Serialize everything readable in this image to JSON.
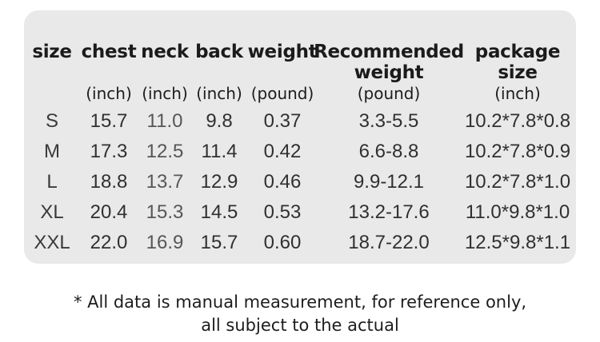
{
  "chart_data": {
    "type": "table",
    "title": "",
    "columns": [
      {
        "label": "size",
        "label2": "",
        "unit": ""
      },
      {
        "label": "chest",
        "label2": "",
        "unit": "(inch)"
      },
      {
        "label": "neck",
        "label2": "",
        "unit": "(inch)"
      },
      {
        "label": "back",
        "label2": "",
        "unit": "(inch)"
      },
      {
        "label": "weight",
        "label2": "",
        "unit": "(pound)"
      },
      {
        "label": "Recommended",
        "label2": "weight",
        "unit": "(pound)"
      },
      {
        "label": "package",
        "label2": "size",
        "unit": "(inch)"
      }
    ],
    "rows": [
      [
        "S",
        "15.7",
        "11.0",
        "9.8",
        "0.37",
        "3.3-5.5",
        "10.2*7.8*0.8"
      ],
      [
        "M",
        "17.3",
        "12.5",
        "11.4",
        "0.42",
        "6.6-8.8",
        "10.2*7.8*0.9"
      ],
      [
        "L",
        "18.8",
        "13.7",
        "12.9",
        "0.46",
        "9.9-12.1",
        "10.2*7.8*1.0"
      ],
      [
        "XL",
        "20.4",
        "15.3",
        "14.5",
        "0.53",
        "13.2-17.6",
        "11.0*9.8*1.0"
      ],
      [
        "XXL",
        "22.0",
        "16.9",
        "15.7",
        "0.60",
        "18.7-22.0",
        "12.5*9.8*1.1"
      ]
    ]
  },
  "footnote": {
    "line1": "* All data is manual measurement, for reference only,",
    "line2": "all subject to the actual"
  },
  "colors": {
    "panel_background": "#e9e9e9",
    "text": "#1b1b1b"
  }
}
